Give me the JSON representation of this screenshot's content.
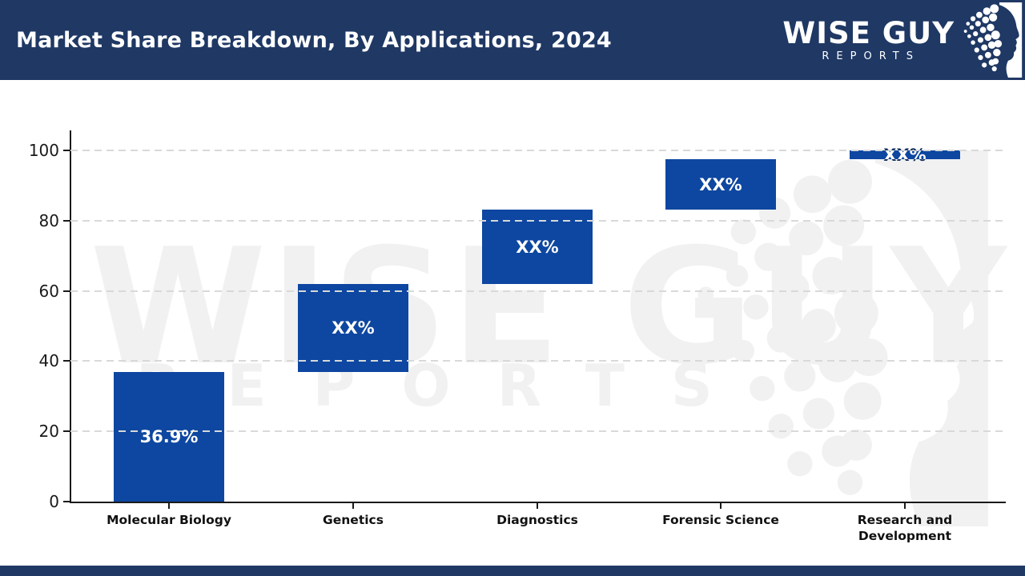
{
  "header": {
    "title": "Market Share Breakdown, By Applications, 2024",
    "logo": {
      "line1": "WISE GUY",
      "line2": "REPORTS"
    }
  },
  "watermark": {
    "line1": "WISE GUY",
    "line2": "REPORTS"
  },
  "colors": {
    "header_navy": "#1f3864",
    "bar_blue": "#0d47a1",
    "grid_gray": "#d9d9d9",
    "watermark_gray": "#f1f1f2",
    "label_white": "#ffffff",
    "label_dark_navy": "#14305e"
  },
  "chart_data": {
    "type": "bar",
    "subtype": "waterfall",
    "title": "Market Share Breakdown, By Applications, 2024",
    "categories": [
      "Molecular Biology",
      "Genetics",
      "Diagnostics",
      "Forensic Science",
      "Research and Development"
    ],
    "segments": [
      {
        "category": "Molecular Biology",
        "start": 0,
        "end": 36.9,
        "label": "36.9%"
      },
      {
        "category": "Genetics",
        "start": 36.9,
        "end": 61.9,
        "label": "XX%"
      },
      {
        "category": "Diagnostics",
        "start": 61.9,
        "end": 83.1,
        "label": "XX%"
      },
      {
        "category": "Forensic Science",
        "start": 83.1,
        "end": 97.4,
        "label": "XX%"
      },
      {
        "category": "Research and Development",
        "start": 97.4,
        "end": 100,
        "label": "XX%"
      }
    ],
    "ylabel": "",
    "xlabel": "",
    "ylim": [
      0,
      100
    ],
    "yticks": [
      0,
      20,
      40,
      60,
      80,
      100
    ],
    "grid": "horizontal dashed, drawn over bars",
    "legend": "none",
    "bar_color": "#0d47a1"
  }
}
